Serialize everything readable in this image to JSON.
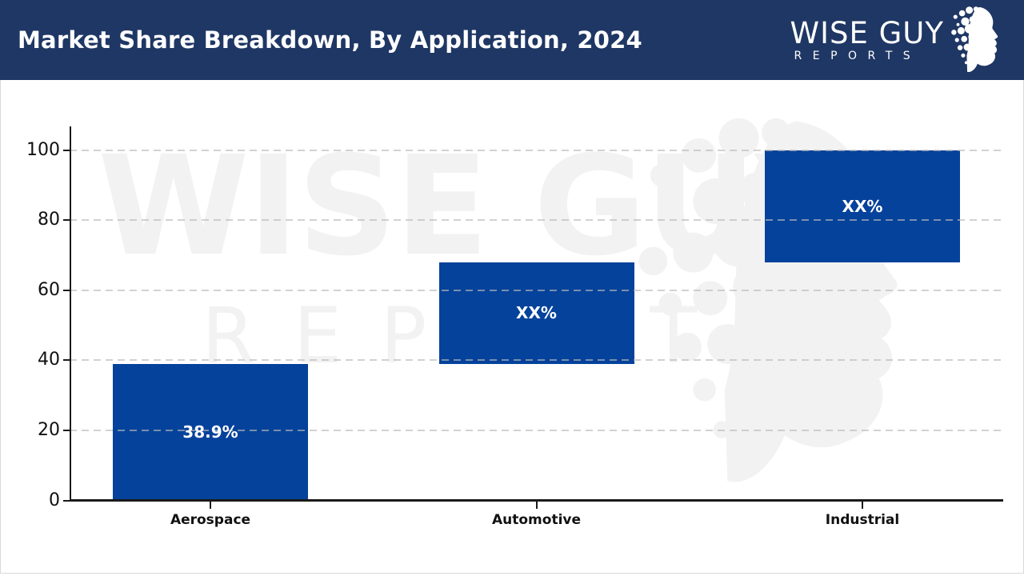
{
  "header": {
    "title": "Market Share Breakdown, By Application, 2024",
    "logo": {
      "line1": "WISE GUY",
      "line2": "REPORTS"
    }
  },
  "watermark": {
    "line1": "WISE GUY",
    "line2": "REPORTS"
  },
  "colors": {
    "header_bg": "#1f3764",
    "bar": "#05429b",
    "bar_label": "#ffffff",
    "axis": "#1a1a1a",
    "gridline_dash": "rgba(185,185,185,0.65)",
    "watermark": "#f2f2f2"
  },
  "chart_data": {
    "type": "bar",
    "subtype": "floating-waterfall",
    "title": "Market Share Breakdown, By Application, 2024",
    "categories": [
      "Aerospace",
      "Automotive",
      "Industrial"
    ],
    "segments": [
      {
        "category": "Aerospace",
        "start": 0,
        "end": 38.9,
        "label": "38.9%"
      },
      {
        "category": "Automotive",
        "start": 38.9,
        "end": 68,
        "label": "XX%"
      },
      {
        "category": "Industrial",
        "start": 68,
        "end": 100,
        "label": "XX%"
      }
    ],
    "yticks": [
      0,
      20,
      40,
      60,
      80,
      100
    ],
    "ylim": [
      0,
      106
    ],
    "xlabel": "",
    "ylabel": "",
    "grid": "horizontal-dashed",
    "legend": "none",
    "bar_color": "#05429b",
    "label_color": "#ffffff"
  }
}
